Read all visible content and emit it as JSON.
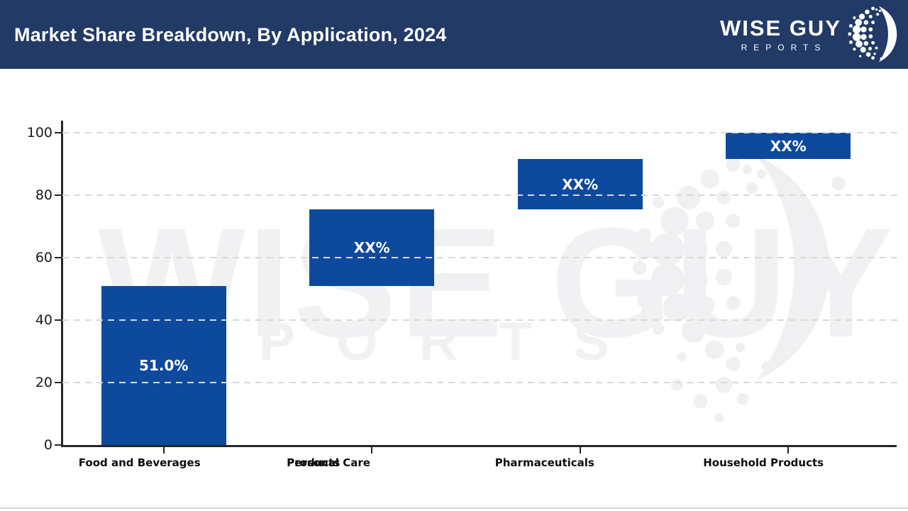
{
  "header": {
    "title": "Market Share Breakdown, By Application, 2024",
    "bg_color": "#213A66",
    "logo": {
      "line1": "WISE GUY",
      "line2": "REPORTS"
    }
  },
  "watermark": {
    "line1": "WISE GUY",
    "line2": "PORTS"
  },
  "chart_data": {
    "type": "bar",
    "variant": "waterfall",
    "title": "Market Share Breakdown, By Application, 2024",
    "categories": [
      "Food and Beverages",
      "Personal Care Products",
      "Pharmaceuticals",
      "Household Products"
    ],
    "categories_display": [
      [
        "Food and Beverages"
      ],
      [
        "Personal Care",
        "Products"
      ],
      [
        "Pharmaceuticals"
      ],
      [
        "Household Products"
      ]
    ],
    "segments": [
      {
        "category": "Food and Beverages",
        "start": 0,
        "end": 51.0,
        "label": "51.0%"
      },
      {
        "category": "Personal Care Products",
        "start": 51.0,
        "end": 75.5,
        "label": "XX%"
      },
      {
        "category": "Pharmaceuticals",
        "start": 75.5,
        "end": 91.5,
        "label": "XX%"
      },
      {
        "category": "Household Products",
        "start": 91.5,
        "end": 100.0,
        "label": "XX%"
      }
    ],
    "xlabel": "",
    "ylabel": "",
    "ylim": [
      0,
      100
    ],
    "yticks": [
      0,
      20,
      40,
      60,
      80,
      100
    ],
    "grid": "horizontal-dashed",
    "legend": "none",
    "bar_color": "#0D4A9E",
    "bar_label_color": "#FFFFFF",
    "axis_color": "#262626",
    "grid_color": "#D9D9D9",
    "header_color": "#213A66"
  }
}
